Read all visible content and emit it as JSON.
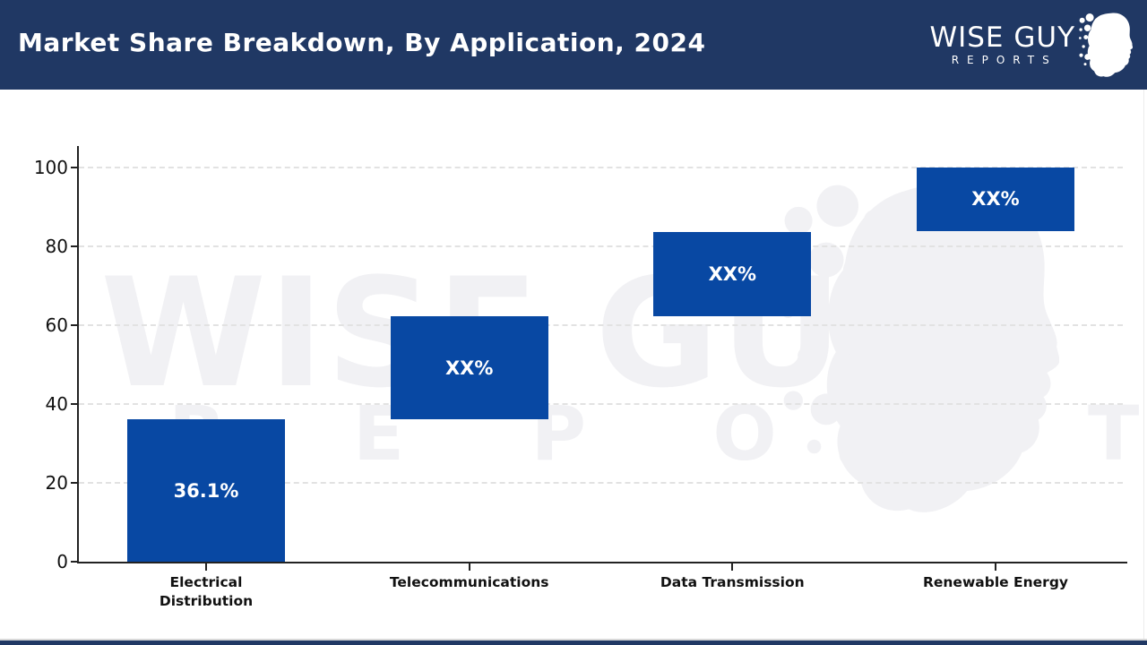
{
  "header": {
    "title": "Market Share Breakdown, By Application, 2024",
    "logo": {
      "wordmark": "WISE GUY",
      "subtitle": "REPORTS"
    }
  },
  "watermark": {
    "line1": "WISE GUY",
    "line2": "R E P O R T S"
  },
  "colors": {
    "header_bg": "#203864",
    "footer_bg": "#203864",
    "bar_fill": "#0848a3",
    "bar_label": "#ffffff",
    "grid": "#e2e2e2",
    "axis": "#222222",
    "watermark": "#f1f1f4"
  },
  "chart_data": {
    "type": "bar",
    "subtype": "floating-waterfall",
    "title": "Market Share Breakdown, By Application, 2024",
    "categories": [
      "Electrical Distribution",
      "Telecommunications",
      "Data Transmission",
      "Renewable Energy"
    ],
    "categories_display": [
      "Electrical\nDistribution",
      "Telecommunications",
      "Data Transmission",
      "Renewable Energy"
    ],
    "segments": [
      {
        "category": "Electrical Distribution",
        "start": 0,
        "end": 36.1,
        "label": "36.1%"
      },
      {
        "category": "Telecommunications",
        "start": 36.1,
        "end": 62.3,
        "label": "XX%"
      },
      {
        "category": "Data Transmission",
        "start": 62.3,
        "end": 83.6,
        "label": "XX%"
      },
      {
        "category": "Renewable Energy",
        "start": 83.9,
        "end": 100,
        "label": "XX%"
      }
    ],
    "xlabel": "",
    "ylabel": "",
    "ylim": [
      0,
      105
    ],
    "yticks": [
      0,
      20,
      40,
      60,
      80,
      100
    ],
    "grid": "horizontal dashed",
    "legend": "none"
  }
}
